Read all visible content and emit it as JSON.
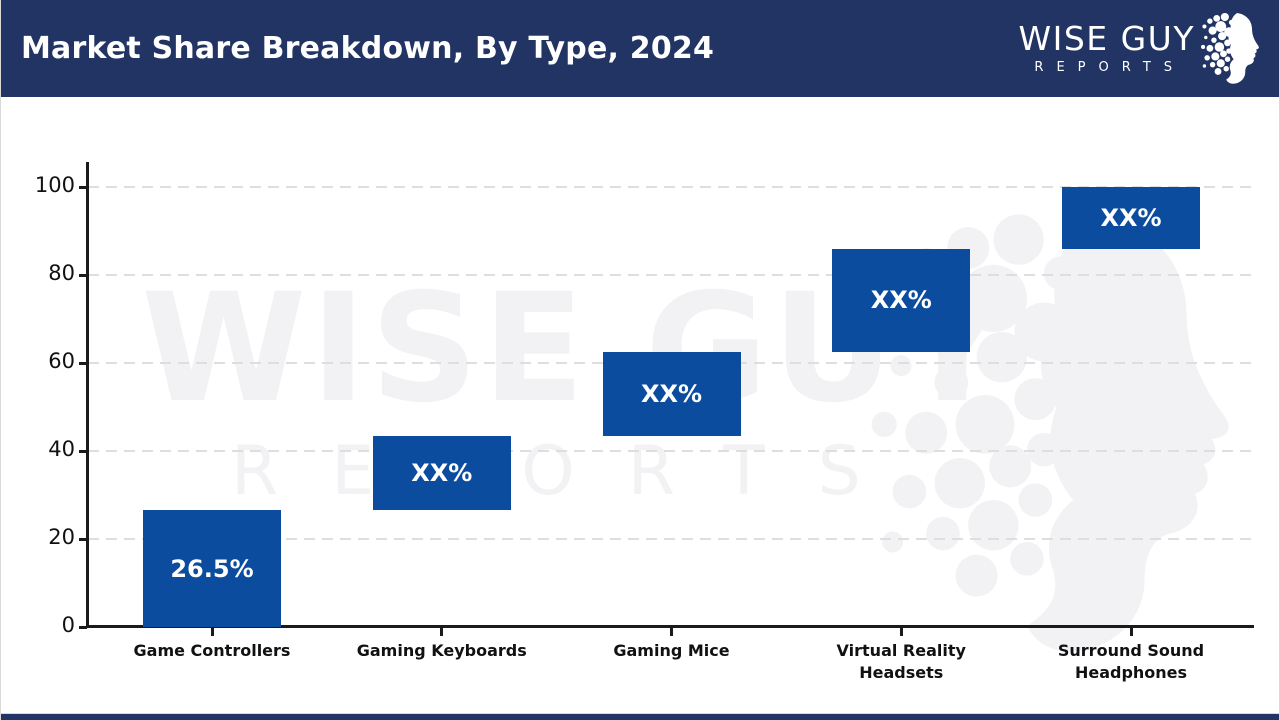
{
  "header": {
    "title": "Market Share Breakdown, By Type, 2024",
    "logo": {
      "line1": "WISE GUY",
      "line2": "REPORTS"
    }
  },
  "watermark": {
    "line1": "WISE GUY",
    "line2": "REPORTS"
  },
  "chart_data": {
    "type": "bar",
    "subtype": "waterfall",
    "title": "Market Share Breakdown, By Type, 2024",
    "categories": [
      "Game Controllers",
      "Gaming Keyboards",
      "Gaming Mice",
      "Virtual Reality Headsets",
      "Surround Sound Headphones"
    ],
    "bars": [
      {
        "category": "Game Controllers",
        "label": "26.5%",
        "start": 0,
        "end": 26.5
      },
      {
        "category": "Gaming Keyboards",
        "label": "XX%",
        "start": 26.5,
        "end": 43.5
      },
      {
        "category": "Gaming Mice",
        "label": "XX%",
        "start": 43.5,
        "end": 62.5
      },
      {
        "category": "Virtual Reality Headsets",
        "label": "XX%",
        "start": 62.5,
        "end": 86
      },
      {
        "category": "Surround Sound Headphones",
        "label": "XX%",
        "start": 86,
        "end": 100
      }
    ],
    "yticks": [
      0,
      20,
      40,
      60,
      80,
      100
    ],
    "ylim": [
      0,
      105
    ],
    "xlabel": "",
    "ylabel": "",
    "grid": "horizontal-dashed",
    "legend": "none",
    "colors": {
      "bar": "#0b4c9f",
      "bar_value_label": "#ffffff",
      "header_background": "#213463",
      "gridline": "#dedede",
      "axis": "#1a1a1a",
      "watermark": "#f2f2f4"
    }
  }
}
